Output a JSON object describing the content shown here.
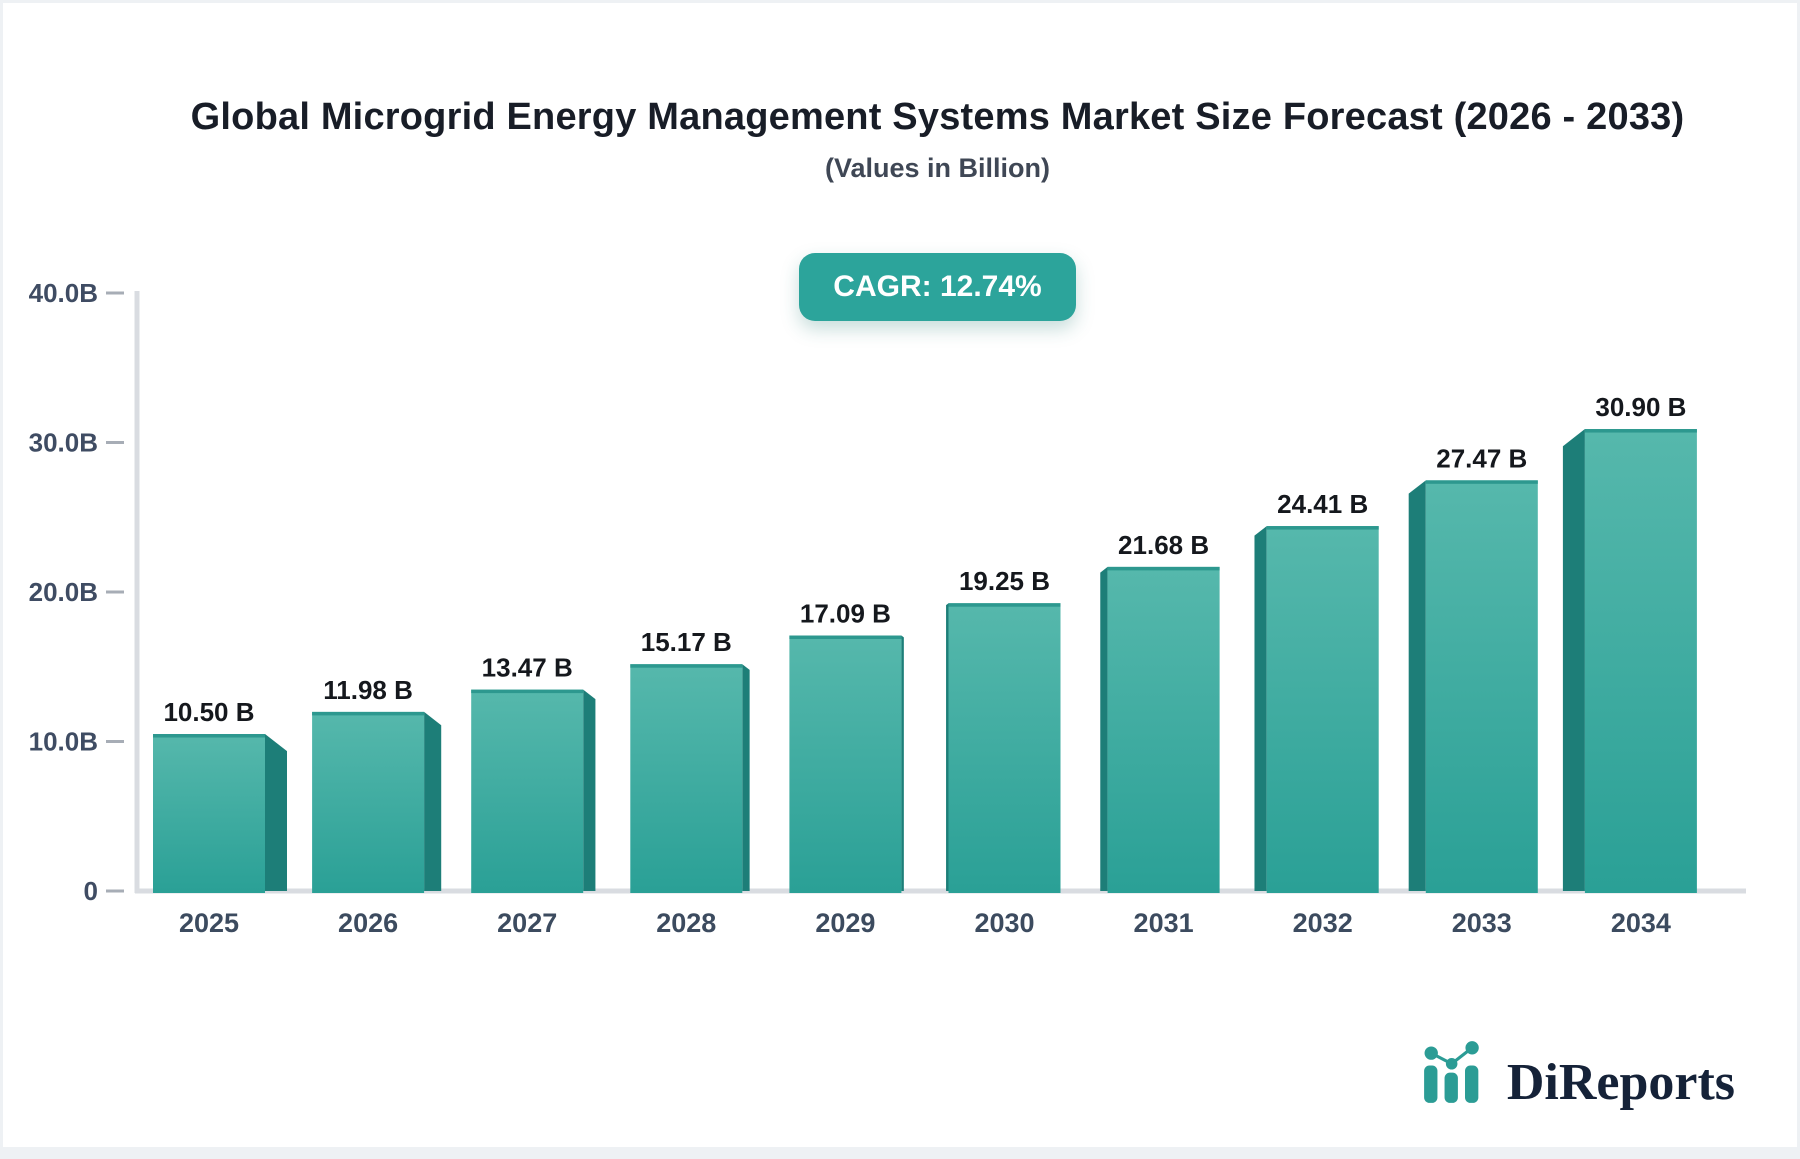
{
  "header": {
    "title": "Global Microgrid Energy Management Systems Market Size Forecast (2026 - 2033)",
    "subtitle": "(Values in Billion)"
  },
  "badge": {
    "label": "CAGR: 12.74%"
  },
  "logo": {
    "text": "DiReports"
  },
  "colors": {
    "accent_teal": "#2ca49b",
    "bar_gradient_top": "#56b8ac",
    "bar_gradient_bottom": "#2aa096",
    "bar_side": "#1d7e78",
    "bar_top_edge": "#2d988f",
    "axis_line": "#d9dce1",
    "tick_dash": "#a7adb6",
    "tick_label": "#3f4c63",
    "year_label": "#3c4b5f",
    "value_label": "#15181d",
    "title_text": "#181d27",
    "logo_navy": "#152238"
  },
  "chart_data": {
    "type": "bar",
    "title": "Global Microgrid Energy Management Systems Market Size Forecast (2026 - 2033)",
    "subtitle": "(Values in Billion)",
    "xlabel": "",
    "ylabel": "",
    "categories": [
      "2025",
      "2026",
      "2027",
      "2028",
      "2029",
      "2030",
      "2031",
      "2032",
      "2033",
      "2034"
    ],
    "values": [
      10.5,
      11.98,
      13.47,
      15.17,
      17.09,
      19.25,
      21.68,
      24.41,
      27.47,
      30.9
    ],
    "labels": [
      "10.50 B",
      "11.98 B",
      "13.47 B",
      "15.17 B",
      "17.09 B",
      "19.25 B",
      "21.68 B",
      "24.41 B",
      "27.47 B",
      "30.90 B"
    ],
    "ylim": [
      0,
      40
    ],
    "y_ticks": [
      {
        "value": 40,
        "label": "40.0B"
      },
      {
        "value": 30,
        "label": "30.0B"
      },
      {
        "value": 20,
        "label": "20.0B"
      },
      {
        "value": 10,
        "label": "10.0B"
      },
      {
        "value": 0,
        "label": "0"
      }
    ],
    "grid": false,
    "legend": "none",
    "style": "3d-bars, gradient teal, perspective toward center"
  }
}
